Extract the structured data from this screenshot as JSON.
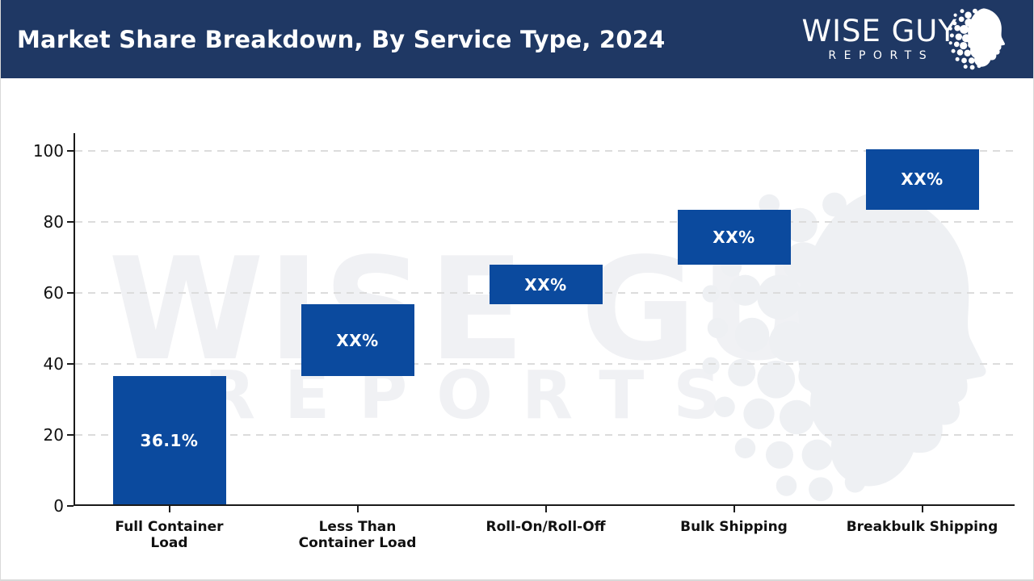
{
  "header": {
    "title": "Market Share Breakdown, By Service Type, 2024",
    "bg_color": "#1f3864",
    "logo": {
      "wordmark": "WISE GUY",
      "subtext": "REPORTS"
    }
  },
  "watermark": {
    "line1": "WISE GUY",
    "line2": "REPORTS"
  },
  "chart_data": {
    "type": "bar",
    "subtype": "waterfall",
    "title": "Market Share Breakdown, By Service Type, 2024",
    "xlabel": "",
    "ylabel": "",
    "ylim": [
      0,
      105
    ],
    "y_ticks": [
      0,
      20,
      40,
      60,
      80,
      100
    ],
    "grid": {
      "horizontal": true,
      "style": "dashed",
      "color": "#dcdcdc"
    },
    "legend": "none",
    "bar_color": "#0b4a9e",
    "label_color": "#ffffff",
    "categories": [
      "Full Container Load",
      "Less Than Container Load",
      "Roll-On/Roll-Off",
      "Bulk Shipping",
      "Breakbulk Shipping"
    ],
    "segments": [
      {
        "category": "Full Container Load",
        "category_lines": [
          "Full Container",
          "Load"
        ],
        "start": 0,
        "end": 36.1,
        "label": "36.1%"
      },
      {
        "category": "Less Than Container Load",
        "category_lines": [
          "Less Than",
          "Container Load"
        ],
        "start": 36.1,
        "end": 56.4,
        "label": "XX%"
      },
      {
        "category": "Roll-On/Roll-Off",
        "category_lines": [
          "Roll-On/Roll-Off"
        ],
        "start": 56.4,
        "end": 67.4,
        "label": "XX%"
      },
      {
        "category": "Bulk Shipping",
        "category_lines": [
          "Bulk Shipping"
        ],
        "start": 67.4,
        "end": 83.0,
        "label": "XX%"
      },
      {
        "category": "Breakbulk Shipping",
        "category_lines": [
          "Breakbulk Shipping"
        ],
        "start": 83.0,
        "end": 100.0,
        "label": "XX%"
      }
    ]
  }
}
